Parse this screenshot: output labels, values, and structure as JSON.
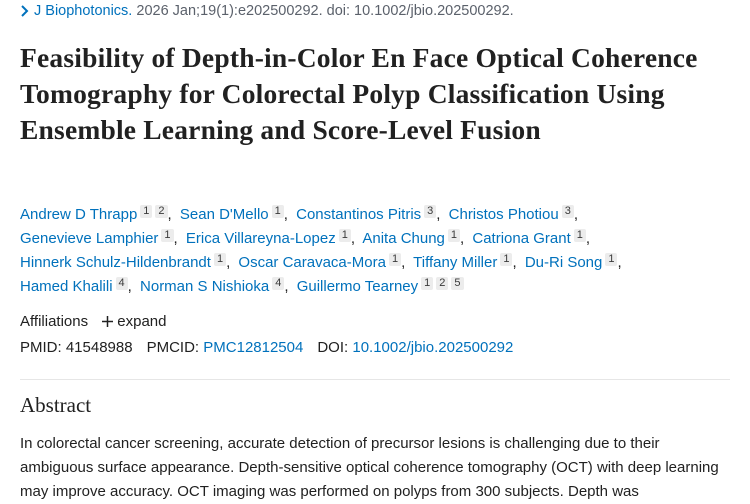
{
  "citation": {
    "journal": "J Biophotonics.",
    "details": "2026 Jan;19(1):e202500292. doi: 10.1002/jbio.202500292."
  },
  "title": "Feasibility of Depth-in-Color En Face Optical Coherence Tomography for Colorectal Polyp Classification Using Ensemble Learning and Score-Level Fusion",
  "authors": [
    {
      "name": "Andrew D Thrapp",
      "affiliations": [
        "1",
        "2"
      ]
    },
    {
      "name": "Sean D'Mello",
      "affiliations": [
        "1"
      ]
    },
    {
      "name": "Constantinos Pitris",
      "affiliations": [
        "3"
      ]
    },
    {
      "name": "Christos Photiou",
      "affiliations": [
        "3"
      ]
    },
    {
      "name": "Genevieve Lamphier",
      "affiliations": [
        "1"
      ]
    },
    {
      "name": "Erica Villareyna-Lopez",
      "affiliations": [
        "1"
      ]
    },
    {
      "name": "Anita Chung",
      "affiliations": [
        "1"
      ]
    },
    {
      "name": "Catriona Grant",
      "affiliations": [
        "1"
      ]
    },
    {
      "name": "Hinnerk Schulz-Hildenbrandt",
      "affiliations": [
        "1"
      ]
    },
    {
      "name": "Oscar Caravaca-Mora",
      "affiliations": [
        "1"
      ]
    },
    {
      "name": "Tiffany Miller",
      "affiliations": [
        "1"
      ]
    },
    {
      "name": "Du-Ri Song",
      "affiliations": [
        "1"
      ]
    },
    {
      "name": "Hamed Khalili",
      "affiliations": [
        "4"
      ]
    },
    {
      "name": "Norman S Nishioka",
      "affiliations": [
        "4"
      ]
    },
    {
      "name": "Guillermo Tearney",
      "affiliations": [
        "1",
        "2",
        "5"
      ]
    }
  ],
  "affiliations_toggle": {
    "label": "Affiliations",
    "action": "expand"
  },
  "identifiers": [
    {
      "label": "PMID:",
      "value": "41548988"
    },
    {
      "label": "PMCID:",
      "value": "PMC12812504"
    },
    {
      "label": "DOI:",
      "value": "10.1002/jbio.202500292"
    }
  ],
  "abstract": {
    "heading": "Abstract",
    "text": "In colorectal cancer screening, accurate detection of precursor lesions is challenging due to their ambiguous surface appearance. Depth-sensitive optical coherence tomography (OCT) with deep learning may improve accuracy. OCT imaging was performed on polyps from 300 subjects. Depth was"
  }
}
